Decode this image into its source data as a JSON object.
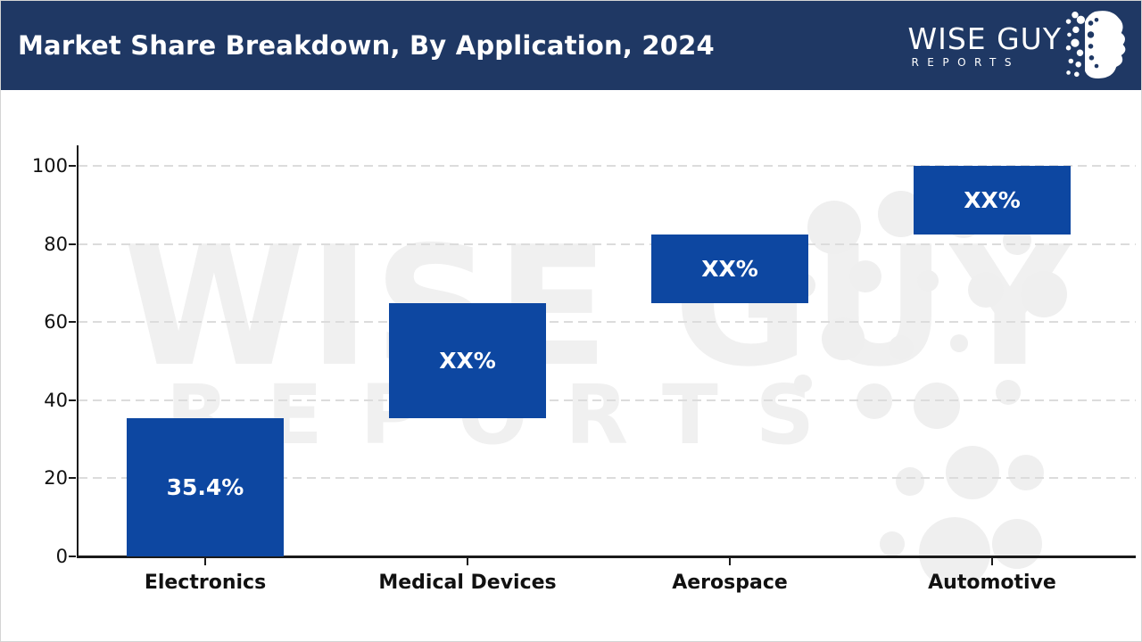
{
  "header": {
    "title": "Market Share Breakdown, By Application, 2024",
    "logo": {
      "line1": "WISE GUY",
      "line2": "REPORTS"
    }
  },
  "watermark": {
    "line1": "WISE GUY",
    "line2": "REPORTS"
  },
  "colors": {
    "header_navy": "#1f3864",
    "bar_blue": "#0d47a1",
    "grid_gray": "#dcdcdc",
    "axis_dark": "#1a1a1a",
    "watermark_gray": "#f0f0f0",
    "frame_gray": "#d4d4d4",
    "label_white": "#ffffff"
  },
  "chart_data": {
    "type": "bar",
    "subtype": "floating-waterfall",
    "title": "Market Share Breakdown, By Application, 2024",
    "categories": [
      "Electronics",
      "Medical Devices",
      "Aerospace",
      "Automotive"
    ],
    "segments": [
      {
        "category": "Electronics",
        "label": "35.4%",
        "start": 0,
        "end": 35.4
      },
      {
        "category": "Medical Devices",
        "label": "XX%",
        "start": 35.4,
        "end": 64.8
      },
      {
        "category": "Aerospace",
        "label": "XX%",
        "start": 64.8,
        "end": 82.4
      },
      {
        "category": "Automotive",
        "label": "XX%",
        "start": 82.4,
        "end": 100
      }
    ],
    "xlabel": "",
    "ylabel": "",
    "ylim": [
      0,
      100
    ],
    "yticks": [
      0,
      20,
      40,
      60,
      80,
      100
    ],
    "grid": "horizontal-dashed",
    "legend": "none",
    "bar_color": "#0d47a1"
  }
}
